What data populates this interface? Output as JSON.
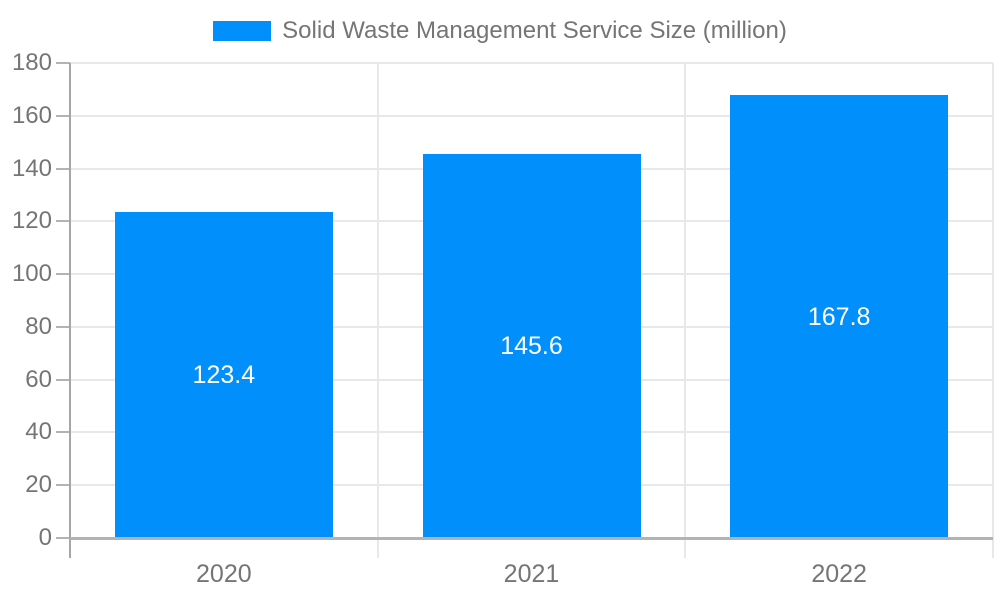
{
  "chart_data": {
    "type": "bar",
    "title": "",
    "xlabel": "",
    "ylabel": "",
    "series_name": "Solid Waste Management Service Size (million)",
    "categories": [
      "2020",
      "2021",
      "2022"
    ],
    "values": [
      123.4,
      145.6,
      167.8
    ],
    "value_labels": [
      "123.4",
      "145.6",
      "167.8"
    ],
    "ylim": [
      0,
      180
    ],
    "yticks": [
      0,
      20,
      40,
      60,
      80,
      100,
      120,
      140,
      160,
      180
    ],
    "ytick_labels": [
      "0",
      "20",
      "40",
      "60",
      "80",
      "100",
      "120",
      "140",
      "160",
      "180"
    ],
    "grid": true,
    "legend_position": "top-center",
    "colors": {
      "bar": "#008FFB",
      "value_label": "#ffffff",
      "axis_text": "#757575",
      "legend_text": "#757575",
      "gridline": "#e8e8e8",
      "axis_line": "#a6a6a6",
      "baseline": "#b3b3b3"
    }
  }
}
